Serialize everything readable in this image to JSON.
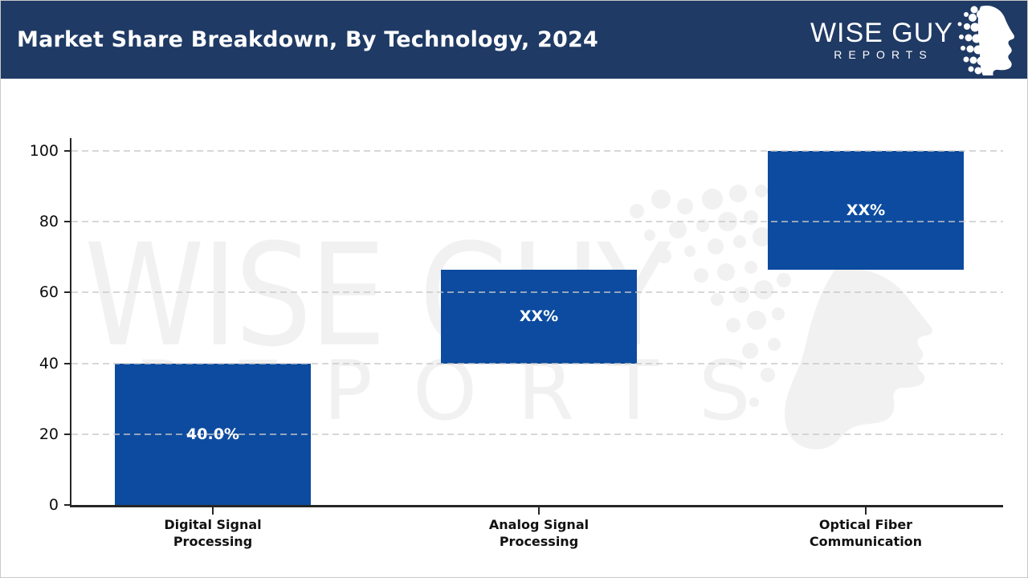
{
  "header": {
    "title": "Market Share Breakdown, By Technology, 2024",
    "logo": {
      "wordmark": "WISE GUY",
      "subtext": "REPORTS"
    }
  },
  "watermark": {
    "line1": "WISE GUY",
    "line2": "REPORTS"
  },
  "chart_data": {
    "type": "bar",
    "subtype": "waterfall",
    "title": "Market Share Breakdown, By Technology, 2024",
    "categories": [
      {
        "line1": "Digital Signal",
        "line2": "Processing"
      },
      {
        "line1": "Analog Signal",
        "line2": "Processing"
      },
      {
        "line1": "Optical Fiber",
        "line2": "Communication"
      }
    ],
    "bars": [
      {
        "category": "Digital Signal Processing",
        "start": 0,
        "end": 40,
        "value": 40.0,
        "label": "40.0%"
      },
      {
        "category": "Analog Signal Processing",
        "start": 40,
        "end": 66.4,
        "value": 26.4,
        "label": "XX%"
      },
      {
        "category": "Optical Fiber Communication",
        "start": 66.4,
        "end": 100,
        "value": 33.6,
        "label": "XX%"
      }
    ],
    "ylim": [
      0,
      100
    ],
    "yticks": [
      0,
      20,
      40,
      60,
      80,
      100
    ],
    "xlabel": "",
    "ylabel": "",
    "grid": "dashed-horizontal-over-bars",
    "legend": "none",
    "bar_color": "#0c4b9f",
    "bar_label_color": "#ffffff",
    "header_color": "#1f3a64",
    "watermark_color": "#f1f1f1"
  }
}
